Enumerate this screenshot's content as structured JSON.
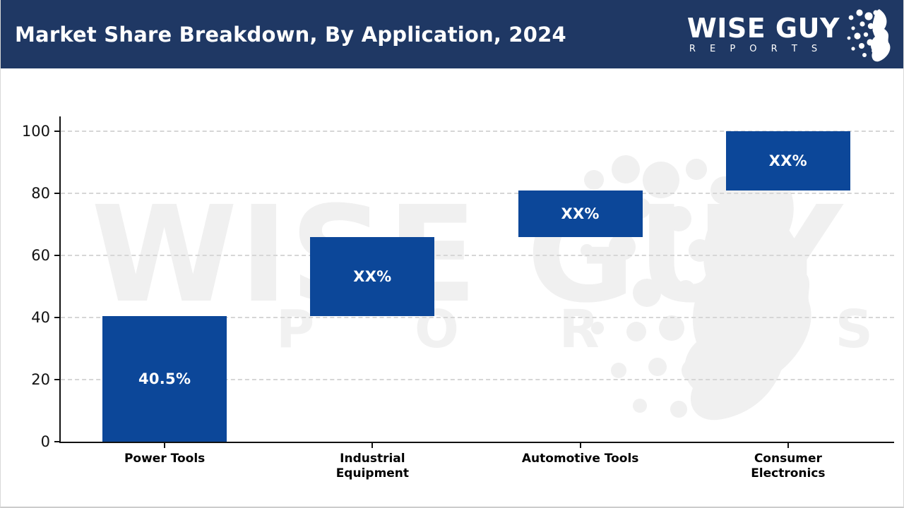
{
  "header": {
    "title": "Market Share Breakdown, By Application, 2024",
    "bg_color": "#1f3864",
    "logo": {
      "wordmark": "WISE GUY",
      "subtext": "R E P O R T S"
    }
  },
  "watermark": {
    "line1": "WISE GUY",
    "line2": "P O R T S"
  },
  "chart_data": {
    "type": "bar",
    "subtype": "waterfall",
    "title": "Market Share Breakdown, By Application, 2024",
    "categories": [
      "Power Tools",
      "Industrial Equipment",
      "Automotive Tools",
      "Consumer Electronics"
    ],
    "segments": [
      {
        "category": "Power Tools",
        "start": 0,
        "end": 40.5,
        "value": 40.5,
        "label": "40.5%"
      },
      {
        "category": "Industrial\nEquipment",
        "start": 40.5,
        "end": 66,
        "value": 25.5,
        "label": "XX%"
      },
      {
        "category": "Automotive Tools",
        "start": 66,
        "end": 81,
        "value": 15,
        "label": "XX%"
      },
      {
        "category": "Consumer\nElectronics",
        "start": 81,
        "end": 100,
        "value": 19,
        "label": "XX%"
      }
    ],
    "y_ticks": [
      0,
      20,
      40,
      60,
      80,
      100
    ],
    "ylim": [
      0,
      105
    ],
    "xlabel": "",
    "ylabel": "",
    "grid": "horizontal-dashed",
    "legend": "none",
    "bar_color": "#0c4799",
    "bar_label_color": "#ffffff",
    "axis_color": "#111111",
    "gridline_color": "#d6d6d6"
  }
}
